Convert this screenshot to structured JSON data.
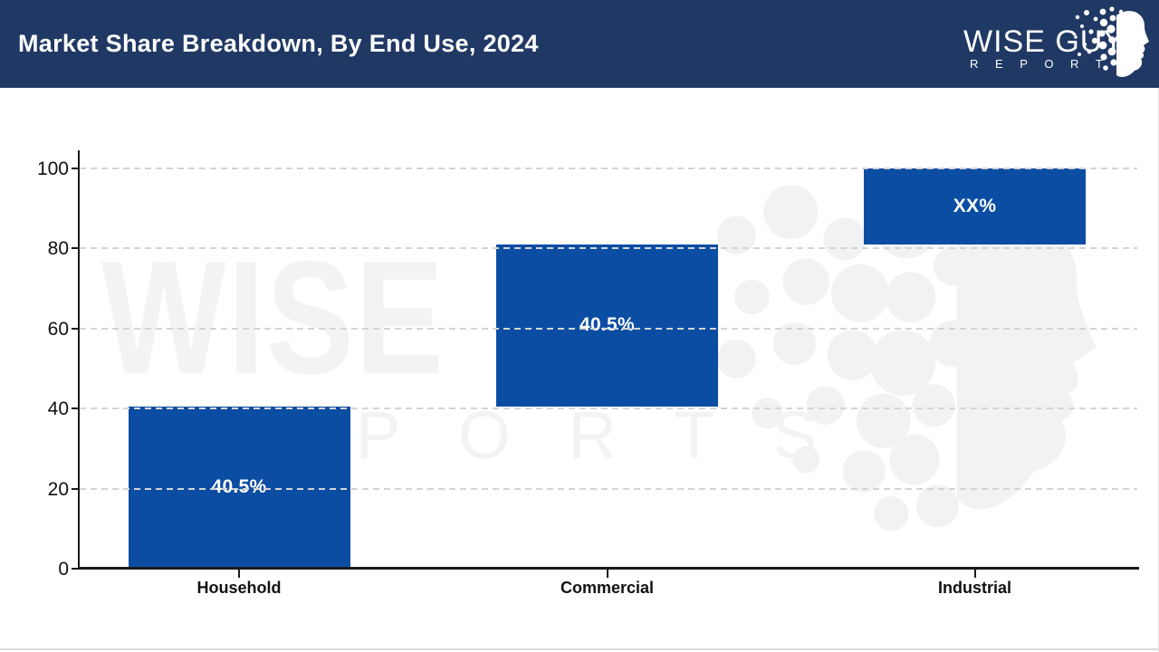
{
  "header": {
    "title": "Market Share Breakdown, By End Use, 2024",
    "logo": {
      "name": "WISE GUY",
      "sub": "R E P O R T S"
    }
  },
  "watermark": {
    "line1": "WISE",
    "line2": "REPORTS"
  },
  "colors": {
    "header_bg": "#203864",
    "bar": "#0B4DA2",
    "gridline": "#d4d4d4",
    "axis": "#1a1a1a",
    "watermark": "#f2f3f5",
    "bar_label": "#ffffff"
  },
  "chart_data": {
    "type": "bar",
    "variant": "waterfall-stacked",
    "title": "Market Share Breakdown, By End Use, 2024",
    "categories": [
      "Household",
      "Commercial",
      "Industrial"
    ],
    "bars": [
      {
        "category": "Household",
        "start": 0,
        "end": 40.5,
        "label": "40.5%"
      },
      {
        "category": "Commercial",
        "start": 40.5,
        "end": 81,
        "label": "40.5%"
      },
      {
        "category": "Industrial",
        "start": 81,
        "end": 100,
        "label": "XX%"
      }
    ],
    "yticks": [
      0,
      20,
      40,
      60,
      80,
      100
    ],
    "ylim": [
      0,
      105
    ],
    "xlabel": "",
    "ylabel": "",
    "grid": "horizontal-dashed",
    "legend": "none"
  }
}
